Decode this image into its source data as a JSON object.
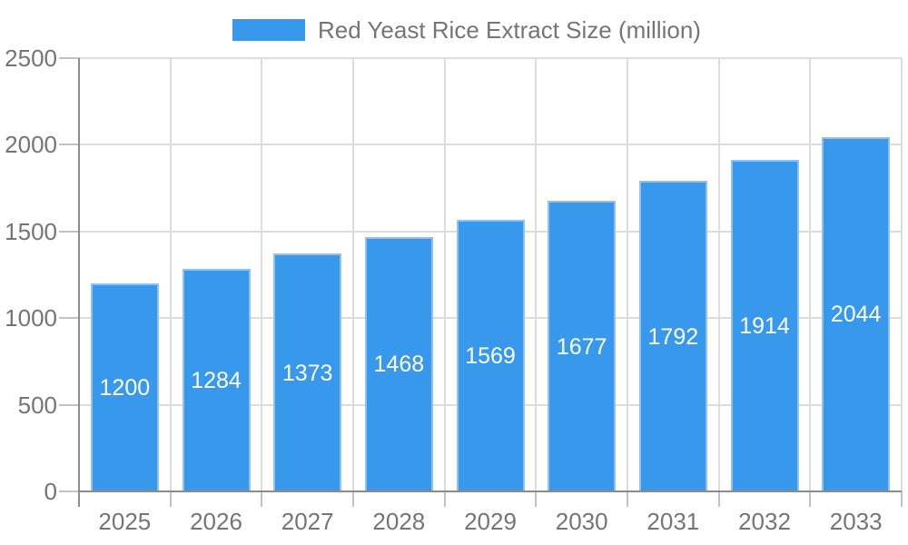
{
  "chart_data": {
    "type": "bar",
    "series_name": "Red Yeast Rice Extract Size (million)",
    "categories": [
      "2025",
      "2026",
      "2027",
      "2028",
      "2029",
      "2030",
      "2031",
      "2032",
      "2033"
    ],
    "values": [
      1200,
      1284,
      1373,
      1468,
      1569,
      1677,
      1792,
      1914,
      2044
    ],
    "ylim": [
      0,
      2500
    ],
    "y_ticks": [
      0,
      500,
      1000,
      1500,
      2000,
      2500
    ],
    "grid": true,
    "legend_position": "top-center",
    "bar_value_labels": "centered-inside-bars",
    "colors": {
      "bar": "#3898EC",
      "bar_border": "#8FC2F1",
      "bar_label": "#FFFFFF",
      "grid": "#DCDCDC",
      "tick": "#C2C2C2",
      "axis": "#8C8C8C",
      "text": "#757575",
      "background": "#FFFFFF"
    }
  }
}
